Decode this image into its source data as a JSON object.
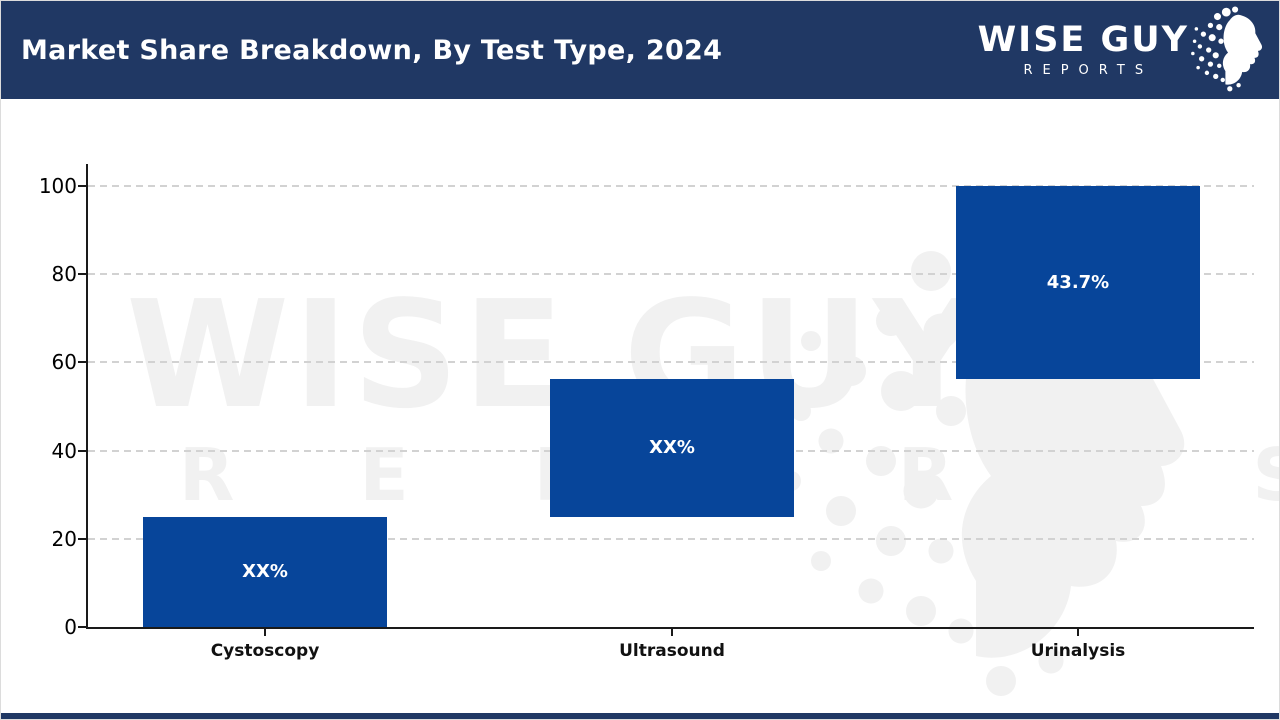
{
  "header": {
    "title": "Market Share Breakdown, By Test Type, 2024",
    "logo": {
      "line1": "WISE GUY",
      "line2": "REPORTS"
    }
  },
  "watermark": {
    "line1": "WISE GUY",
    "line2": "R E P O R T S"
  },
  "colors": {
    "header_bg": "#203864",
    "bar": "#07459a",
    "grid": "#d2d2d2",
    "axis": "#1a1a1a",
    "tick_label": "#000000",
    "bar_label": "#ffffff",
    "watermark": "#f1f1f1"
  },
  "chart_data": {
    "type": "bar",
    "subtype": "floating-waterfall",
    "title": "Market Share Breakdown, By Test Type, 2024",
    "categories": [
      "Cystoscopy",
      "Ultrasound",
      "Urinalysis"
    ],
    "bars": [
      {
        "category": "Cystoscopy",
        "start": 0,
        "end": 25,
        "value_est": 25,
        "label": "XX%"
      },
      {
        "category": "Ultrasound",
        "start": 25,
        "end": 56.3,
        "value_est": 31.3,
        "label": "XX%"
      },
      {
        "category": "Urinalysis",
        "start": 56.3,
        "end": 100,
        "value_est": 43.7,
        "label": "43.7%"
      }
    ],
    "xlabel": "",
    "ylabel": "",
    "ylim": [
      0,
      100
    ],
    "yticks": [
      0,
      20,
      40,
      60,
      80,
      100
    ],
    "grid": "dashed-horizontal",
    "legend": null
  }
}
